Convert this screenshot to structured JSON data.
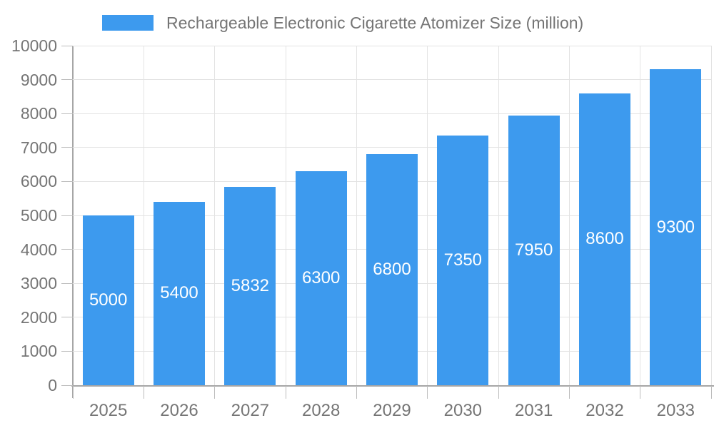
{
  "legend": {
    "label": "Rechargeable Electronic Cigarette Atomizer Size (million)",
    "swatch_color": "#3D9AEE"
  },
  "chart_data": {
    "type": "bar",
    "title": "Rechargeable Electronic Cigarette Atomizer Size (million)",
    "categories": [
      "2025",
      "2026",
      "2027",
      "2028",
      "2029",
      "2030",
      "2031",
      "2032",
      "2033"
    ],
    "series": [
      {
        "name": "Rechargeable Electronic Cigarette Atomizer Size (million)",
        "values": [
          5000,
          5400,
          5832,
          6300,
          6800,
          7350,
          7950,
          8600,
          9300
        ]
      }
    ],
    "xlabel": "",
    "ylabel": "",
    "ylim": [
      0,
      10000
    ],
    "ytick_step": 1000,
    "yticks": [
      0,
      1000,
      2000,
      3000,
      4000,
      5000,
      6000,
      7000,
      8000,
      9000,
      10000
    ],
    "grid": true,
    "legend_position": "top",
    "bar_labels_inside": true,
    "colors": {
      "bar": "#3D9AEE",
      "bar_label": "#FFFFFF",
      "axis_text": "#757575",
      "gridline": "#E3E3E3",
      "axis_line": "#A6A6A6",
      "tick": "#BDBDBD",
      "background": "#FFFFFF"
    }
  }
}
